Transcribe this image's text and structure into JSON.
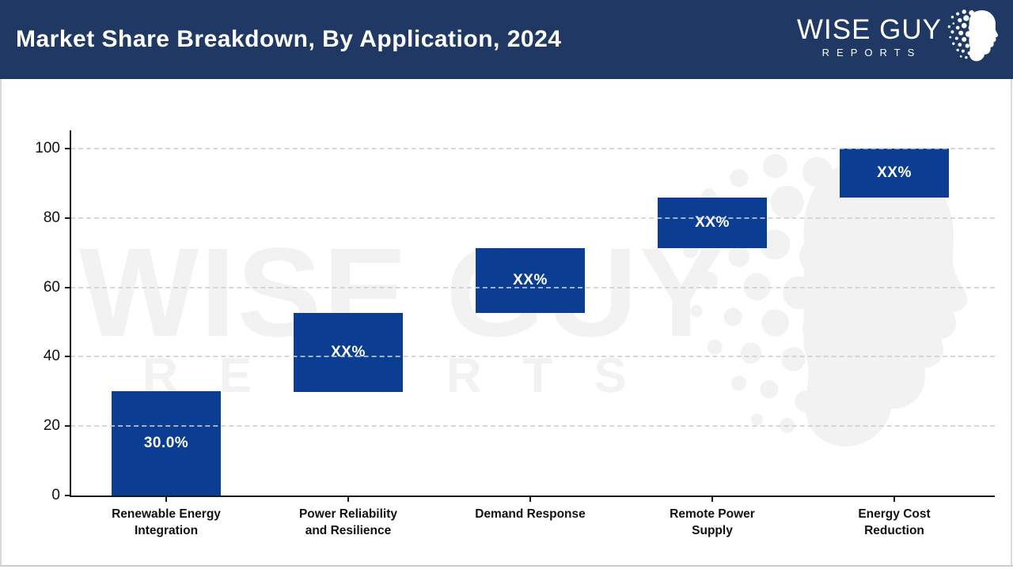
{
  "header": {
    "title": "Market Share Breakdown, By Application, 2024",
    "logo": {
      "line1": "WISE GUY",
      "line2": "REPORTS"
    }
  },
  "watermark": {
    "line1": "WISE GUY",
    "line2": "REPORTS"
  },
  "colors": {
    "header_bg": "#1f3864",
    "bar": "#0b3e92",
    "watermark": "#f2f2f2",
    "gridline": "#d4d4d4"
  },
  "chart_data": {
    "type": "bar",
    "subtype": "waterfall",
    "title": "Market Share Breakdown, By Application, 2024",
    "xlabel": "",
    "ylabel": "",
    "ylim": [
      0,
      100
    ],
    "yticks": [
      0,
      20,
      40,
      60,
      80,
      100
    ],
    "grid": "horizontal dashed",
    "legend": "none",
    "categories": [
      "Renewable Energy\nIntegration",
      "Power Reliability\nand Resilience",
      "Demand Response",
      "Remote Power\nSupply",
      "Energy Cost\nReduction"
    ],
    "segments": [
      {
        "category": "Renewable Energy Integration",
        "start": 0,
        "end": 30,
        "label": "30.0%"
      },
      {
        "category": "Power Reliability and Resilience",
        "start": 30,
        "end": 52.7,
        "label": "XX%"
      },
      {
        "category": "Demand Response",
        "start": 52.7,
        "end": 71.4,
        "label": "XX%"
      },
      {
        "category": "Remote Power Supply",
        "start": 71.4,
        "end": 85.9,
        "label": "XX%"
      },
      {
        "category": "Energy Cost Reduction",
        "start": 85.9,
        "end": 100,
        "label": "XX%"
      }
    ]
  }
}
